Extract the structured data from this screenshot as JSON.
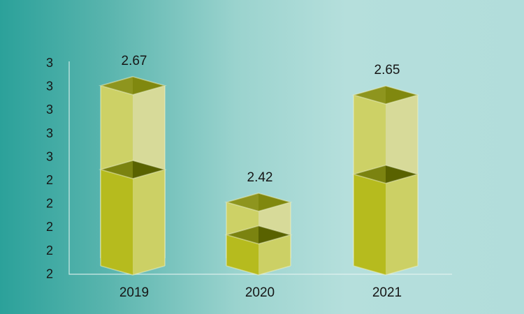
{
  "chart_data": {
    "type": "bar",
    "variant": "3d-column",
    "title": "",
    "xlabel": "",
    "ylabel": "",
    "categories": [
      "2019",
      "2020",
      "2021"
    ],
    "series": [
      {
        "name": "back pale column (labeled)",
        "values": [
          2.67,
          2.42,
          2.65
        ],
        "data_labels": [
          "2.67",
          "2.42",
          "2.65"
        ]
      },
      {
        "name": "front bright column (unlabeled, estimated from axis)",
        "values": [
          2.49,
          2.35,
          2.48
        ],
        "estimated": true
      }
    ],
    "y_axis": {
      "tick_labels_top_to_bottom": [
        "3",
        "3",
        "3",
        "3",
        "3",
        "2",
        "2",
        "2",
        "2",
        "2"
      ],
      "implied_min": 2.0,
      "implied_max": 2.9,
      "implied_step": 0.1
    },
    "legend": "none",
    "grid": "off"
  },
  "colors": {
    "background_left": "#2ba19a",
    "background_right": "#b2dddb",
    "back_face_left": "#cdd166",
    "back_face_right": "#d7da99",
    "back_top_left": "#8e951e",
    "back_top_right": "#80880f",
    "front_face_left": "#b6bb1e",
    "front_face_right": "#ccd065",
    "front_top_left": "#7b8310",
    "front_top_right": "#596200",
    "edge_highlight": "#eef2c8",
    "axis_line": "#e8f4f2",
    "text": "#161616"
  }
}
